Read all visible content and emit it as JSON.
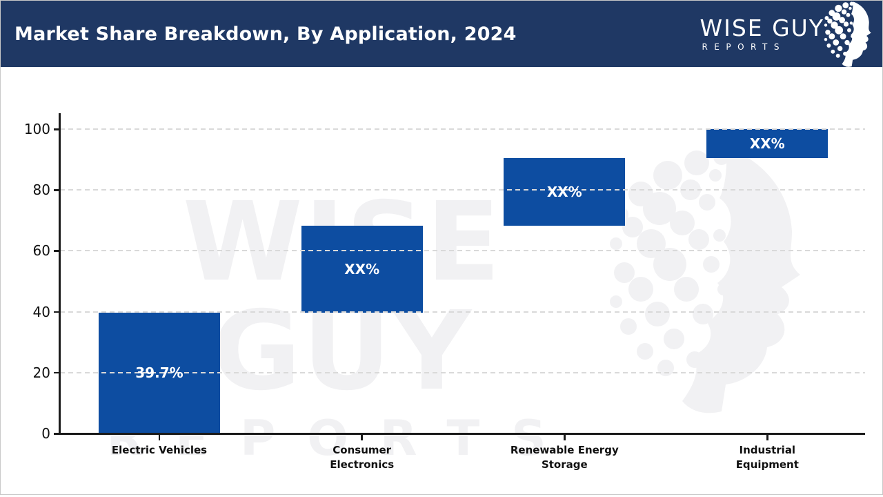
{
  "header": {
    "title": "Market Share Breakdown, By Application, 2024",
    "logo": {
      "line1": "WISE GUY",
      "line2": "REPORTS"
    }
  },
  "watermark": {
    "line1": "WISE GUY",
    "line2": "REPORTS"
  },
  "colors": {
    "header_bg": "#1f3864",
    "bar": "#0d4da1",
    "grid": "#d9d9d9",
    "axis": "#1a1a1a",
    "watermark": "#f1f1f3",
    "value_label": "#ffffff"
  },
  "chart_data": {
    "type": "bar",
    "subtype": "waterfall",
    "title": "Market Share Breakdown, By Application, 2024",
    "categories": [
      "Electric Vehicles",
      "Consumer Electronics",
      "Renewable Energy Storage",
      "Industrial Equipment"
    ],
    "category_lines": [
      [
        "Electric Vehicles"
      ],
      [
        "Consumer",
        "Electronics"
      ],
      [
        "Renewable Energy",
        "Storage"
      ],
      [
        "Industrial",
        "Equipment"
      ]
    ],
    "segments": [
      {
        "category": "Electric Vehicles",
        "start": 0,
        "end": 39.7,
        "value": 39.7,
        "label": "39.7%"
      },
      {
        "category": "Consumer Electronics",
        "start": 39.7,
        "end": 68.2,
        "value": 28.5,
        "label": "XX%"
      },
      {
        "category": "Renewable Energy Storage",
        "start": 68.2,
        "end": 90.5,
        "value": 22.3,
        "label": "XX%"
      },
      {
        "category": "Industrial Equipment",
        "start": 90.5,
        "end": 100,
        "value": 9.5,
        "label": "XX%"
      }
    ],
    "yticks": [
      0,
      20,
      40,
      60,
      80,
      100
    ],
    "ylim": [
      0,
      105
    ],
    "xlabel": "",
    "ylabel": "",
    "grid": "horizontal-dashed",
    "legend": "none"
  }
}
